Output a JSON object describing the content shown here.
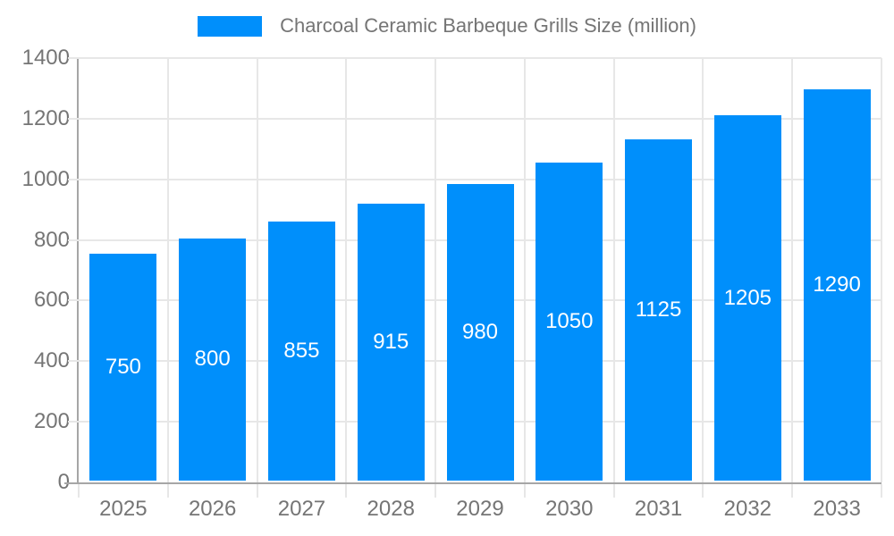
{
  "legend": {
    "items": [
      {
        "label": "Charcoal Ceramic Barbeque Grills Size (million)",
        "marker_color": "#008FFB"
      }
    ]
  },
  "chart_data": {
    "type": "bar",
    "title": "Charcoal Ceramic Barbeque Grills Size (million)",
    "categories": [
      "2025",
      "2026",
      "2027",
      "2028",
      "2029",
      "2030",
      "2031",
      "2032",
      "2033"
    ],
    "values": [
      750,
      800,
      855,
      915,
      980,
      1050,
      1125,
      1205,
      1290
    ],
    "xlabel": "",
    "ylabel": "",
    "ylim": [
      0,
      1400
    ],
    "ytick_step": 200,
    "ytick_labels": [
      "0",
      "200",
      "400",
      "600",
      "800",
      "1000",
      "1200",
      "1400"
    ],
    "grid": true,
    "legend_position": "top-center",
    "value_labels_inside_bars": true
  },
  "colors": {
    "bar": "#008FFB",
    "axis_text": "#757575",
    "grid_line": "#e7e7e7",
    "axis_line": "#a6a6a6",
    "value_label": "#ffffff",
    "background": "#ffffff"
  }
}
